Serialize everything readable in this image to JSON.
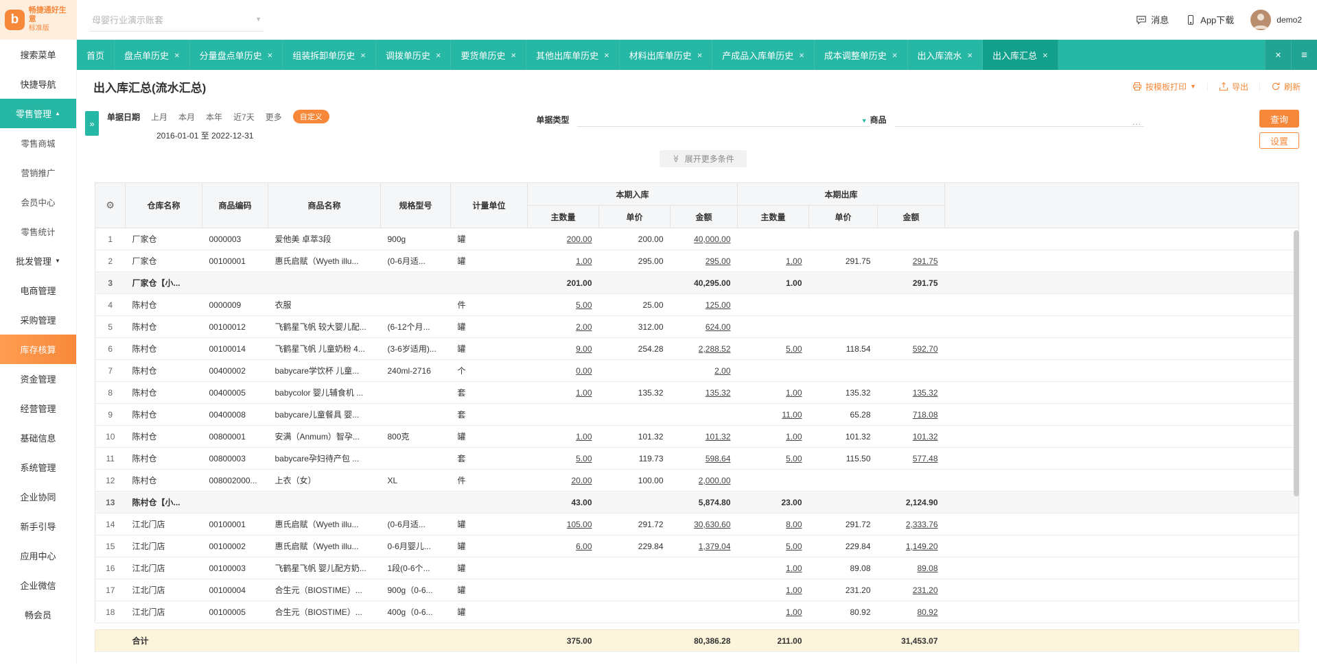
{
  "colors": {
    "teal": "#26b7a5",
    "teal_dark": "#12a08c",
    "orange": "#f7883a",
    "total_bg": "#fdf4dc"
  },
  "header": {
    "logo_title": "畅捷通好生意",
    "logo_badge": "标准版",
    "account": "母婴行业演示账套",
    "messages": "消息",
    "app_download": "App下载",
    "user": "demo2"
  },
  "tabs": [
    {
      "label": "首页",
      "closable": false,
      "active": false
    },
    {
      "label": "盘点单历史",
      "closable": true,
      "active": false
    },
    {
      "label": "分量盘点单历史",
      "closable": true,
      "active": false
    },
    {
      "label": "组装拆卸单历史",
      "closable": true,
      "active": false
    },
    {
      "label": "调拨单历史",
      "closable": true,
      "active": false
    },
    {
      "label": "要货单历史",
      "closable": true,
      "active": false
    },
    {
      "label": "其他出库单历史",
      "closable": true,
      "active": false
    },
    {
      "label": "材料出库单历史",
      "closable": true,
      "active": false
    },
    {
      "label": "产成品入库单历史",
      "closable": true,
      "active": false
    },
    {
      "label": "成本调整单历史",
      "closable": true,
      "active": false
    },
    {
      "label": "出入库流水",
      "closable": true,
      "active": false
    },
    {
      "label": "出入库汇总",
      "closable": true,
      "active": true
    }
  ],
  "sidebar": [
    {
      "label": "搜索菜单",
      "type": "item"
    },
    {
      "label": "快捷导航",
      "type": "item"
    },
    {
      "label": "零售管理",
      "type": "group-open",
      "caret": "up"
    },
    {
      "label": "零售商城",
      "type": "sub"
    },
    {
      "label": "营销推广",
      "type": "sub"
    },
    {
      "label": "会员中心",
      "type": "sub"
    },
    {
      "label": "零售统计",
      "type": "sub"
    },
    {
      "label": "批发管理",
      "type": "item",
      "caret": "down"
    },
    {
      "label": "电商管理",
      "type": "item"
    },
    {
      "label": "采购管理",
      "type": "item"
    },
    {
      "label": "库存核算",
      "type": "active"
    },
    {
      "label": "资金管理",
      "type": "item"
    },
    {
      "label": "经营管理",
      "type": "item"
    },
    {
      "label": "基础信息",
      "type": "item"
    },
    {
      "label": "系统管理",
      "type": "item"
    },
    {
      "label": "企业协同",
      "type": "item"
    },
    {
      "label": "新手引导",
      "type": "item"
    },
    {
      "label": "应用中心",
      "type": "item"
    },
    {
      "label": "企业微信",
      "type": "item"
    },
    {
      "label": "畅会员",
      "type": "item"
    }
  ],
  "page": {
    "title": "出入库汇总(流水汇总)",
    "print": "按模板打印",
    "export": "导出",
    "refresh": "刷新"
  },
  "filters": {
    "date_label": "单据日期",
    "date_quick": [
      "上月",
      "本月",
      "本年",
      "近7天",
      "更多"
    ],
    "custom_badge": "自定义",
    "date_range": "2016-01-01 至 2022-12-31",
    "doc_type_label": "单据类型",
    "product_label": "商品",
    "product_more": "...",
    "query": "查询",
    "settings": "设置",
    "expand_more": "展开更多条件"
  },
  "table": {
    "col_headers": [
      "仓库名称",
      "商品编码",
      "商品名称",
      "规格型号",
      "计量单位"
    ],
    "group_in": "本期入库",
    "group_out": "本期出库",
    "sub_headers": [
      "主数量",
      "单价",
      "金额"
    ],
    "total_label": "合计",
    "rows": [
      {
        "idx": "1",
        "warehouse": "厂家仓",
        "code": "0000003",
        "name": "爱他美 卓萃3段",
        "spec": "900g",
        "unit": "罐",
        "in_qty": "200.00",
        "in_price": "200.00",
        "in_amt": "40,000.00",
        "out_qty": "",
        "out_price": "",
        "out_amt": "",
        "type": "data"
      },
      {
        "idx": "2",
        "warehouse": "厂家仓",
        "code": "00100001",
        "name": "惠氏启赋（Wyeth illu...",
        "spec": "(0-6月适...",
        "unit": "罐",
        "in_qty": "1.00",
        "in_price": "295.00",
        "in_amt": "295.00",
        "out_qty": "1.00",
        "out_price": "291.75",
        "out_amt": "291.75",
        "type": "data"
      },
      {
        "idx": "3",
        "warehouse": "厂家仓【小...",
        "code": "",
        "name": "",
        "spec": "",
        "unit": "",
        "in_qty": "201.00",
        "in_price": "",
        "in_amt": "40,295.00",
        "out_qty": "1.00",
        "out_price": "",
        "out_amt": "291.75",
        "type": "subtotal"
      },
      {
        "idx": "4",
        "warehouse": "陈村仓",
        "code": "0000009",
        "name": "衣服",
        "spec": "",
        "unit": "件",
        "in_qty": "5.00",
        "in_price": "25.00",
        "in_amt": "125.00",
        "out_qty": "",
        "out_price": "",
        "out_amt": "",
        "type": "data"
      },
      {
        "idx": "5",
        "warehouse": "陈村仓",
        "code": "00100012",
        "name": "飞鹤星飞帆 较大婴儿配...",
        "spec": "(6-12个月...",
        "unit": "罐",
        "in_qty": "2.00",
        "in_price": "312.00",
        "in_amt": "624.00",
        "out_qty": "",
        "out_price": "",
        "out_amt": "",
        "type": "data"
      },
      {
        "idx": "6",
        "warehouse": "陈村仓",
        "code": "00100014",
        "name": "飞鹤星飞帆 儿童奶粉 4...",
        "spec": "(3-6岁适用)...",
        "unit": "罐",
        "in_qty": "9.00",
        "in_price": "254.28",
        "in_amt": "2,288.52",
        "out_qty": "5.00",
        "out_price": "118.54",
        "out_amt": "592.70",
        "type": "data"
      },
      {
        "idx": "7",
        "warehouse": "陈村仓",
        "code": "00400002",
        "name": "babycare学饮杯 儿童...",
        "spec": "240ml-2716",
        "unit": "个",
        "in_qty": "0.00",
        "in_price": "",
        "in_amt": "2.00",
        "out_qty": "",
        "out_price": "",
        "out_amt": "",
        "type": "data"
      },
      {
        "idx": "8",
        "warehouse": "陈村仓",
        "code": "00400005",
        "name": "babycolor 婴儿辅食机 ...",
        "spec": "",
        "unit": "套",
        "in_qty": "1.00",
        "in_price": "135.32",
        "in_amt": "135.32",
        "out_qty": "1.00",
        "out_price": "135.32",
        "out_amt": "135.32",
        "type": "data"
      },
      {
        "idx": "9",
        "warehouse": "陈村仓",
        "code": "00400008",
        "name": "babycare儿童餐具 婴...",
        "spec": "",
        "unit": "套",
        "in_qty": "",
        "in_price": "",
        "in_amt": "",
        "out_qty": "11.00",
        "out_price": "65.28",
        "out_amt": "718.08",
        "type": "data"
      },
      {
        "idx": "10",
        "warehouse": "陈村仓",
        "code": "00800001",
        "name": "安满（Anmum）智孕...",
        "spec": "800克",
        "unit": "罐",
        "in_qty": "1.00",
        "in_price": "101.32",
        "in_amt": "101.32",
        "out_qty": "1.00",
        "out_price": "101.32",
        "out_amt": "101.32",
        "type": "data"
      },
      {
        "idx": "11",
        "warehouse": "陈村仓",
        "code": "00800003",
        "name": "babycare孕妇待产包 ...",
        "spec": "",
        "unit": "套",
        "in_qty": "5.00",
        "in_price": "119.73",
        "in_amt": "598.64",
        "out_qty": "5.00",
        "out_price": "115.50",
        "out_amt": "577.48",
        "type": "data"
      },
      {
        "idx": "12",
        "warehouse": "陈村仓",
        "code": "008002000...",
        "name": "上衣（女）",
        "spec": "XL",
        "unit": "件",
        "in_qty": "20.00",
        "in_price": "100.00",
        "in_amt": "2,000.00",
        "out_qty": "",
        "out_price": "",
        "out_amt": "",
        "type": "data"
      },
      {
        "idx": "13",
        "warehouse": "陈村仓【小...",
        "code": "",
        "name": "",
        "spec": "",
        "unit": "",
        "in_qty": "43.00",
        "in_price": "",
        "in_amt": "5,874.80",
        "out_qty": "23.00",
        "out_price": "",
        "out_amt": "2,124.90",
        "type": "subtotal"
      },
      {
        "idx": "14",
        "warehouse": "江北门店",
        "code": "00100001",
        "name": "惠氏启赋（Wyeth illu...",
        "spec": "(0-6月适...",
        "unit": "罐",
        "in_qty": "105.00",
        "in_price": "291.72",
        "in_amt": "30,630.60",
        "out_qty": "8.00",
        "out_price": "291.72",
        "out_amt": "2,333.76",
        "type": "data"
      },
      {
        "idx": "15",
        "warehouse": "江北门店",
        "code": "00100002",
        "name": "惠氏启赋（Wyeth illu...",
        "spec": "0-6月婴儿...",
        "unit": "罐",
        "in_qty": "6.00",
        "in_price": "229.84",
        "in_amt": "1,379.04",
        "out_qty": "5.00",
        "out_price": "229.84",
        "out_amt": "1,149.20",
        "type": "data"
      },
      {
        "idx": "16",
        "warehouse": "江北门店",
        "code": "00100003",
        "name": "飞鹤星飞帆 婴儿配方奶...",
        "spec": "1段(0-6个...",
        "unit": "罐",
        "in_qty": "",
        "in_price": "",
        "in_amt": "",
        "out_qty": "1.00",
        "out_price": "89.08",
        "out_amt": "89.08",
        "type": "data"
      },
      {
        "idx": "17",
        "warehouse": "江北门店",
        "code": "00100004",
        "name": "合生元（BIOSTIME）...",
        "spec": "900g（0-6...",
        "unit": "罐",
        "in_qty": "",
        "in_price": "",
        "in_amt": "",
        "out_qty": "1.00",
        "out_price": "231.20",
        "out_amt": "231.20",
        "type": "data"
      },
      {
        "idx": "18",
        "warehouse": "江北门店",
        "code": "00100005",
        "name": "合生元（BIOSTIME）...",
        "spec": "400g（0-6...",
        "unit": "罐",
        "in_qty": "",
        "in_price": "",
        "in_amt": "",
        "out_qty": "1.00",
        "out_price": "80.92",
        "out_amt": "80.92",
        "type": "data"
      }
    ],
    "total": {
      "in_qty": "375.00",
      "in_price": "",
      "in_amt": "80,386.28",
      "out_qty": "211.00",
      "out_price": "",
      "out_amt": "31,453.07"
    }
  }
}
